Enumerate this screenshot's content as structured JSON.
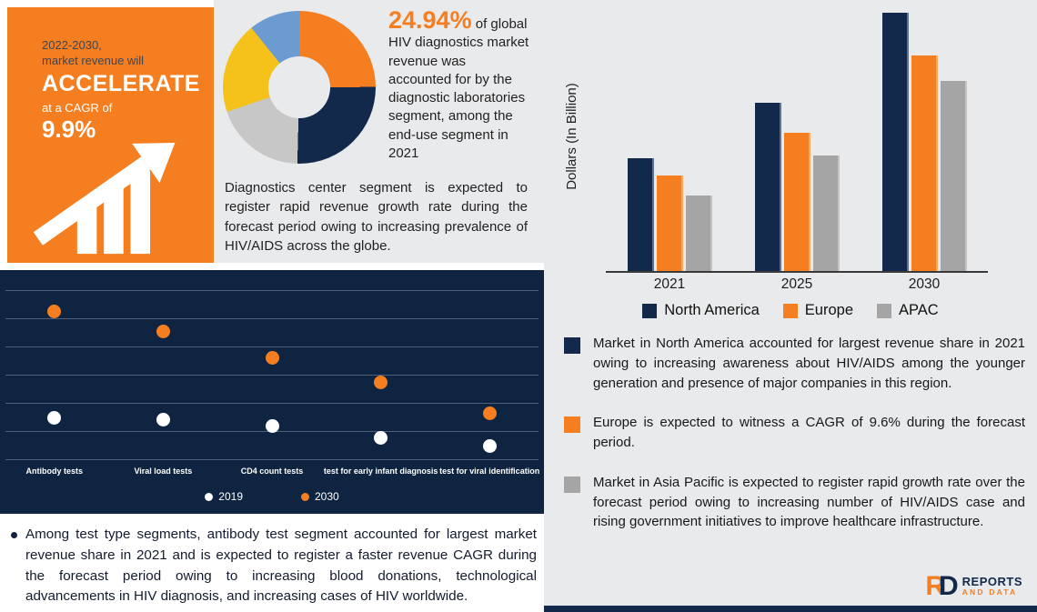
{
  "colors": {
    "orange": "#F47E20",
    "navy": "#12294B",
    "panel_gray": "#E9EAEC",
    "dotplot_bg": "#0E2441",
    "bar_gray": "#A5A5A5",
    "donut_yellow": "#F4C21B",
    "donut_blue": "#6C9BD2",
    "donut_gray": "#C7C7C7",
    "white": "#FFFFFF"
  },
  "accelerate_panel": {
    "period": "2022-2030,",
    "lead": "market revenue will",
    "keyword": "ACCELERATE",
    "cagr_label": "at a CAGR of",
    "cagr_value": "9.9%"
  },
  "donut_panel": {
    "highlight_value": "24.94%",
    "highlight_tail": "of global HIV diagnostics market revenue was accounted for by the diagnostic laboratories segment, among the end-use segment in 2021",
    "note": "Diagnostics center segment is expected to register rapid revenue growth rate during the forecast period owing to increasing prevalence of HIV/AIDS across the globe."
  },
  "left_note": {
    "text": "Among test type segments, antibody test segment accounted for largest market revenue share in 2021 and is expected to register a faster revenue CAGR during the forecast period owing to increasing blood donations, technological advancements in HIV diagnosis, and increasing cases of HIV worldwide."
  },
  "right_bullets": [
    {
      "color": "#12294B",
      "text": "Market in North America accounted for largest revenue share in 2021 owing to increasing awareness about HIV/AIDS among the younger generation and presence of major companies in this region."
    },
    {
      "color": "#F47E20",
      "text": "Europe is expected to witness a CAGR of 9.6% during the forecast period."
    },
    {
      "color": "#A5A5A5",
      "text": "Market in Asia Pacific is expected to register rapid growth rate over the forecast period owing to increasing number of HIV/AIDS case and rising government initiatives to improve healthcare infrastructure."
    }
  ],
  "logo": {
    "monogram_r": "R",
    "monogram_d": "D",
    "line1": "REPORTS",
    "line2": "AND DATA"
  },
  "chart_data": [
    {
      "type": "pie",
      "name": "end-use-donut",
      "title": "",
      "segments": [
        {
          "label": "diagnostic laboratories",
          "value": 24.94,
          "color": "#F47E20"
        },
        {
          "label": "",
          "value": 25.46,
          "color": "#12294B"
        },
        {
          "label": "",
          "value": 19.4,
          "color": "#C7C7C7"
        },
        {
          "label": "",
          "value": 19.4,
          "color": "#F4C21B"
        },
        {
          "label": "",
          "value": 10.8,
          "color": "#6C9BD2"
        }
      ],
      "donut_hole": true,
      "annotation": "24.94% = diagnostic laboratories share of end-use segment, 2021"
    },
    {
      "type": "scatter",
      "name": "test-type-dot-plot",
      "title": "",
      "categories": [
        "Antibody tests",
        "Viral load tests",
        "CD4 count tests",
        "test for early infant diagnosis",
        "test for viral identification"
      ],
      "series": [
        {
          "name": "2019",
          "color": "#FFFFFF",
          "values": [
            2.9,
            2.8,
            2.4,
            1.6,
            1.1
          ]
        },
        {
          "name": "2030",
          "color": "#F47E20",
          "values": [
            9.8,
            8.5,
            6.8,
            5.2,
            3.2
          ]
        }
      ],
      "ylim": [
        0,
        11
      ],
      "grid": true,
      "legend_position": "bottom"
    },
    {
      "type": "bar",
      "name": "regional-revenue-bars",
      "title": "",
      "xlabel": "",
      "ylabel": "Dollars (In Billion)",
      "categories": [
        "2021",
        "2025",
        "2030"
      ],
      "series": [
        {
          "name": "North America",
          "color": "#12294B",
          "values": [
            4.5,
            6.7,
            10.3
          ]
        },
        {
          "name": "Europe",
          "color": "#F47E20",
          "values": [
            3.8,
            5.5,
            8.6
          ]
        },
        {
          "name": "APAC",
          "color": "#A5A5A5",
          "values": [
            3.0,
            4.6,
            7.6
          ]
        }
      ],
      "ylim": [
        0,
        10.6
      ],
      "grid": false,
      "legend_position": "bottom"
    }
  ]
}
